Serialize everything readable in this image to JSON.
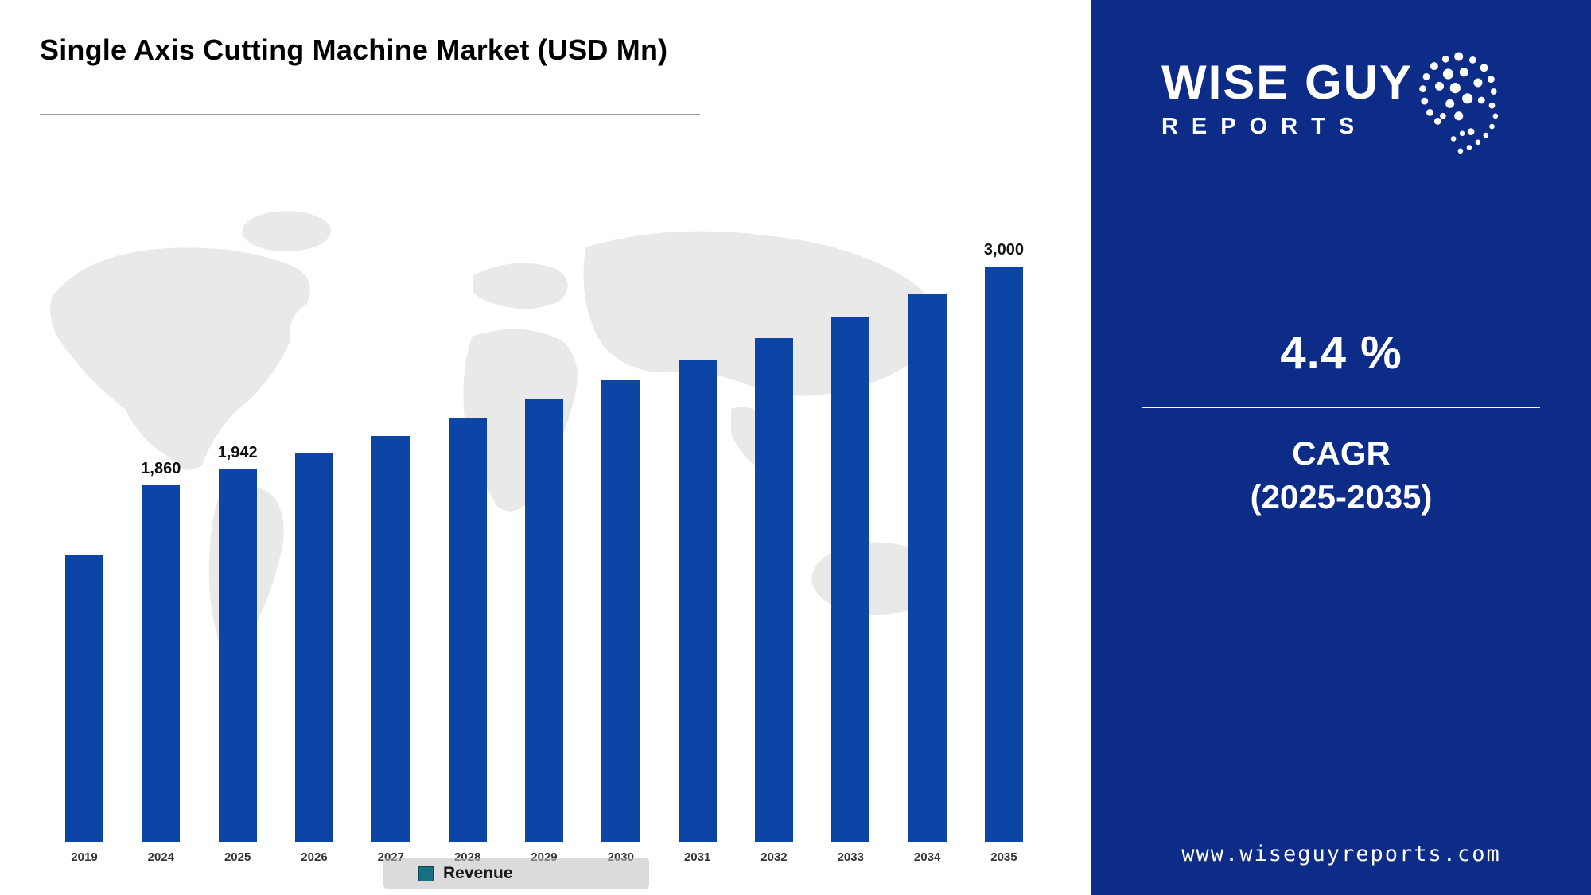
{
  "title": "Single Axis Cutting Machine Market (USD Mn)",
  "legend": {
    "label": "Revenue",
    "color": "#17707f"
  },
  "chart_data": {
    "type": "bar",
    "title": "Single Axis Cutting Machine Market (USD Mn)",
    "categories": [
      "2019",
      "2024",
      "2025",
      "2026",
      "2027",
      "2028",
      "2029",
      "2030",
      "2031",
      "2032",
      "2033",
      "2034",
      "2035"
    ],
    "values": [
      1500,
      1860,
      1942,
      2027,
      2117,
      2210,
      2307,
      2409,
      2515,
      2625,
      2741,
      2861,
      3000
    ],
    "data_labels": {
      "2024": "1,860",
      "2025": "1,942",
      "2035": "3,000"
    },
    "xlabel": "",
    "ylabel": "",
    "ylim": [
      0,
      3000
    ],
    "bar_color": "#0c45a6",
    "grid": false,
    "legend_position": "bottom",
    "legend_entries": [
      "Revenue"
    ]
  },
  "sidebar": {
    "logo_line1": "WISE GUY",
    "logo_line2": "REPORTS",
    "cagr_value": "4.4 %",
    "cagr_label1": "CAGR",
    "cagr_label2": "(2025-2035)",
    "website": "www.wiseguyreports.com",
    "background": "#0d2c88"
  }
}
